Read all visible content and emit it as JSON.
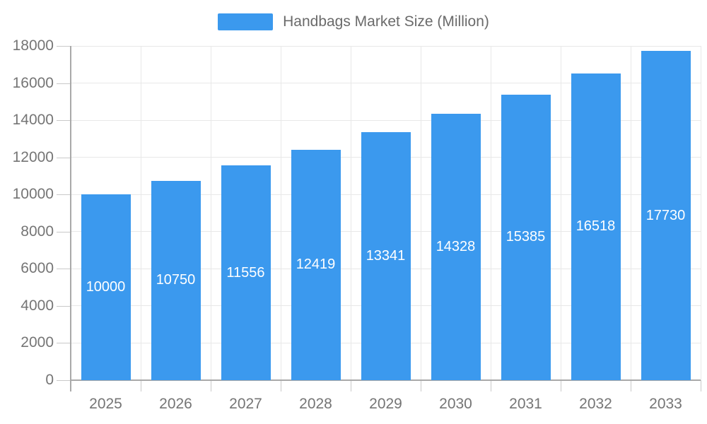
{
  "legend": {
    "items": [
      {
        "label": "Handbags Market Size (Million)",
        "color": "#3B99EE"
      }
    ]
  },
  "chart_data": {
    "type": "bar",
    "title": "Handbags Market Size (Million)",
    "categories": [
      "2025",
      "2026",
      "2027",
      "2028",
      "2029",
      "2030",
      "2031",
      "2032",
      "2033"
    ],
    "series": [
      {
        "name": "Handbags Market Size (Million)",
        "color": "#3B99EE",
        "values": [
          10000,
          10750,
          11556,
          12419,
          13341,
          14328,
          15385,
          16518,
          17730
        ]
      }
    ],
    "value_labels": [
      10000,
      10750,
      11556,
      12419,
      13341,
      14328,
      15385,
      16518,
      17730
    ],
    "value_label_position": "inside-center",
    "xlabel": "",
    "ylabel": "",
    "ylim": [
      0,
      18000
    ],
    "ytick_step": 2000,
    "ytick_labels": [
      "0",
      "2000",
      "4000",
      "6000",
      "8000",
      "10000",
      "12000",
      "14000",
      "16000",
      "18000"
    ],
    "grid": true,
    "legend_position": "top-center"
  },
  "colors": {
    "bar": "#3B99EE",
    "bar_label_text": "#FFFFFF",
    "axis_text": "#757575",
    "legend_text": "#6A6A6A",
    "gridline": "#E8E8E8",
    "axis_line": "#A9A9A9",
    "tick_line": "#C9C9C9",
    "background": "#FFFFFF"
  }
}
